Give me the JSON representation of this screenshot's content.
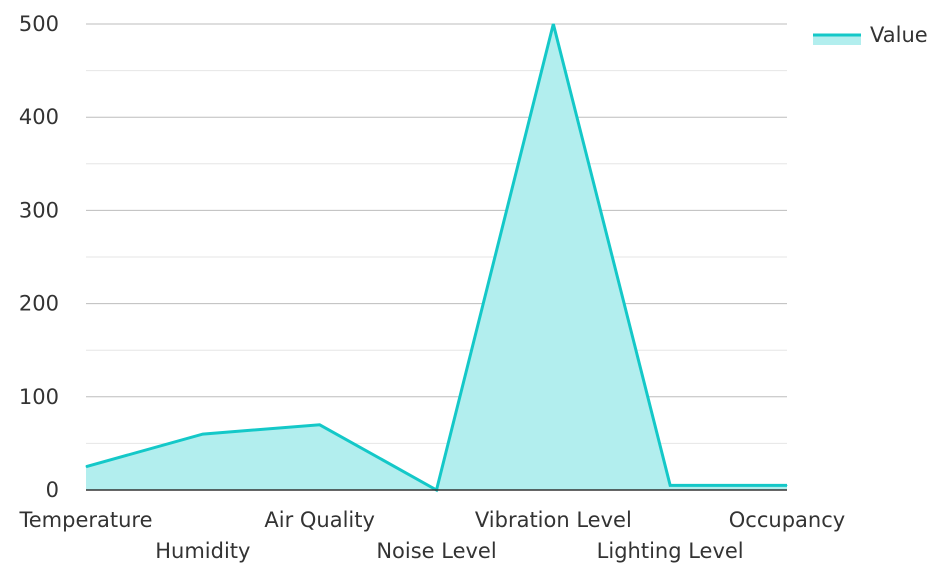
{
  "chart_data": {
    "type": "area",
    "categories": [
      "Temperature",
      "Humidity",
      "Air Quality",
      "Noise Level",
      "Vibration Level",
      "Lighting Level",
      "Occupancy"
    ],
    "series": [
      {
        "name": "Value",
        "values": [
          25,
          60,
          70,
          0,
          500,
          5,
          5
        ]
      }
    ],
    "ylim": [
      0,
      500
    ],
    "yticks": [
      0,
      100,
      200,
      300,
      400,
      500
    ],
    "grid": true,
    "legend_position": "top-right",
    "colors": {
      "line": "#14c8c8",
      "fill": "#b2eeee",
      "grid_major": "#bdbdbd",
      "grid_minor": "#e6e6e6",
      "axis": "#333333"
    }
  }
}
